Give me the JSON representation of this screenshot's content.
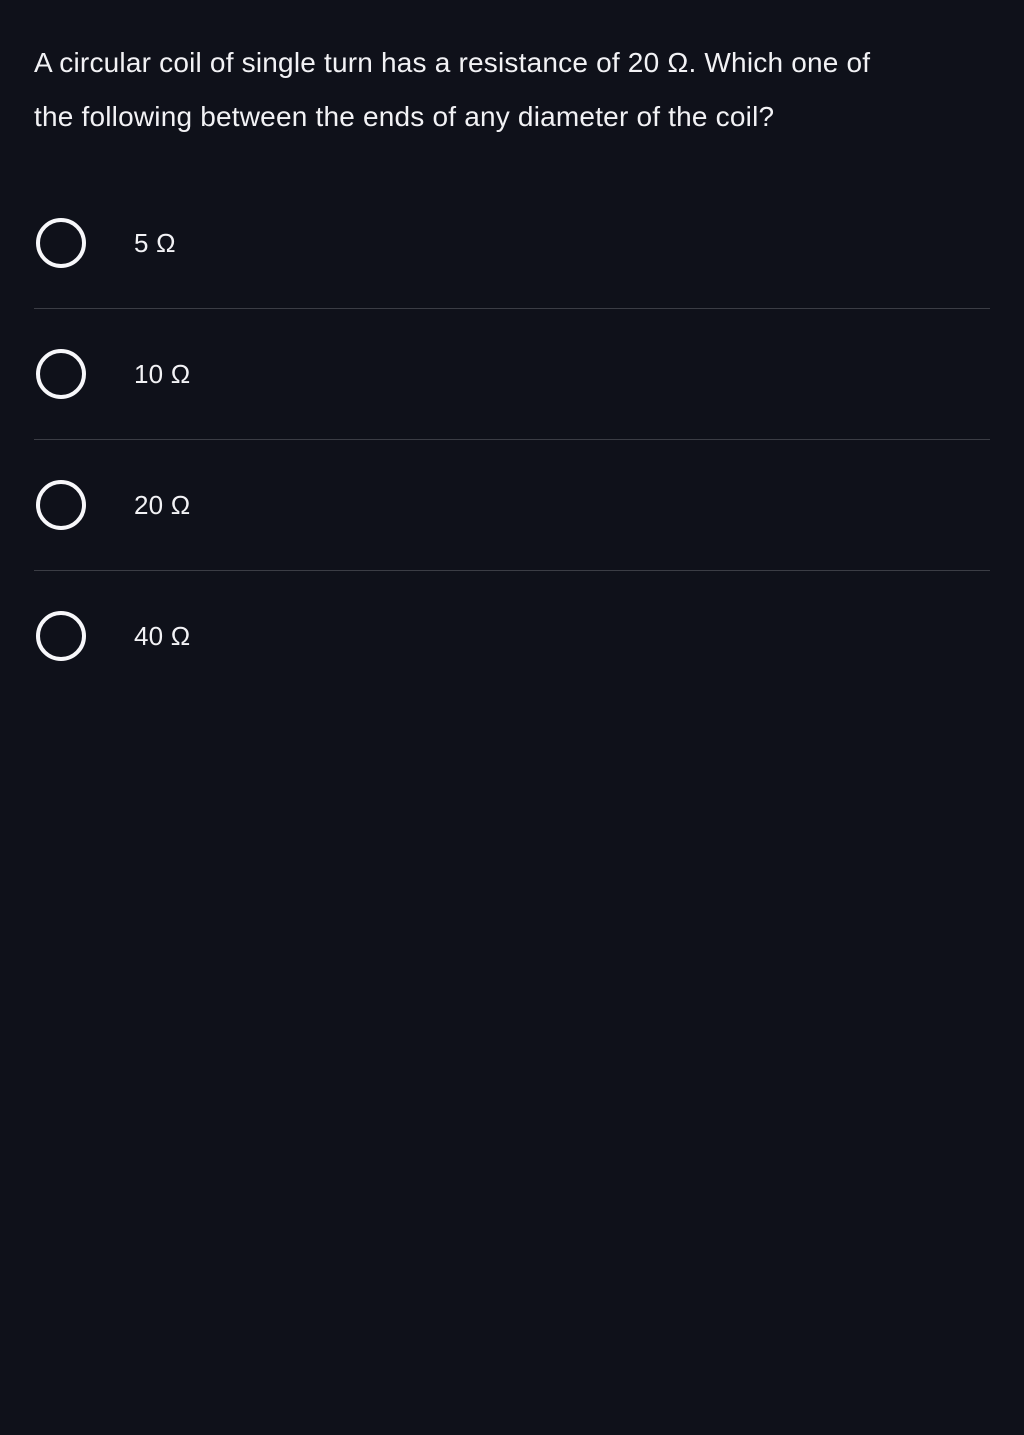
{
  "colors": {
    "background": "#0f111a",
    "text": "#f2f2f5",
    "radio_border": "#f7f7fa",
    "divider": "#3b3d45"
  },
  "question": {
    "line1": "A circular coil of single turn has a resistance of 20 Ω. Which one of",
    "line2": "the following between the ends of any diameter of the coil?"
  },
  "options": [
    {
      "label": "5 Ω"
    },
    {
      "label": "10 Ω"
    },
    {
      "label": "20 Ω"
    },
    {
      "label": "40 Ω"
    }
  ]
}
